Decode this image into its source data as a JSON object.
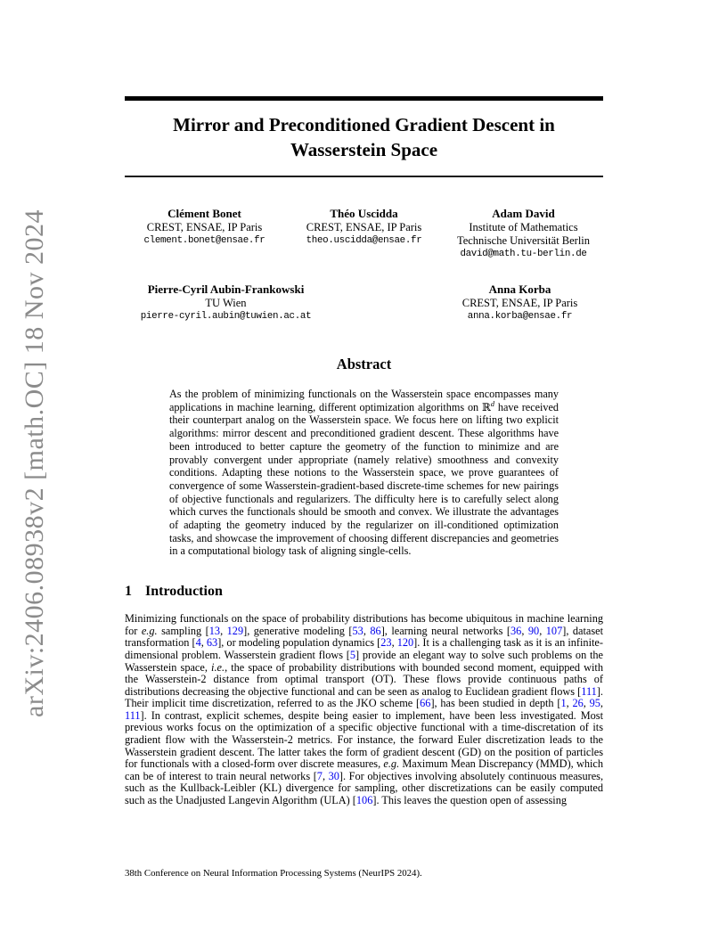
{
  "colors": {
    "link": "#0000EE",
    "watermark": "#8b8b8b"
  },
  "watermark": "arXiv:2406.08938v2  [math.OC]  18 Nov 2024",
  "title": "Mirror and Preconditioned Gradient Descent in Wasserstein Space",
  "authors": {
    "a1": {
      "name": "Clément Bonet",
      "affil1": "CREST, ENSAE, IP Paris",
      "email": "clement.bonet@ensae.fr"
    },
    "a2": {
      "name": "Théo Uscidda",
      "affil1": "CREST, ENSAE, IP Paris",
      "email": "theo.uscidda@ensae.fr"
    },
    "a3": {
      "name": "Adam David",
      "affil1": "Institute of Mathematics",
      "affil2": "Technische Universität Berlin",
      "email": "david@math.tu-berlin.de"
    },
    "a4": {
      "name": "Pierre-Cyril Aubin-Frankowski",
      "affil1": "TU Wien",
      "email": "pierre-cyril.aubin@tuwien.ac.at"
    },
    "a5": {
      "name": "Anna Korba",
      "affil1": "CREST, ENSAE, IP Paris",
      "email": "anna.korba@ensae.fr"
    }
  },
  "abstract": {
    "heading": "Abstract",
    "segments": [
      {
        "t": "As the problem of minimizing functionals on the Wasserstein space encompasses many applications in machine learning, different optimization algorithms on "
      },
      {
        "m": "ℝ"
      },
      {
        "sup": "d"
      },
      {
        "t": " have received their counterpart analog on the Wasserstein space. We focus here on lifting two explicit algorithms: mirror descent and preconditioned gradient descent. These algorithms have been introduced to better capture the geometry of the function to minimize and are provably convergent under appropriate (namely relative) smoothness and convexity conditions. Adapting these notions to the Wasserstein space, we prove guarantees of convergence of some Wasserstein-gradient-based discrete-time schemes for new pairings of objective functionals and regularizers. The difficulty here is to carefully select along which curves the functionals should be smooth and convex. We illustrate the advantages of adapting the geometry induced by the regularizer on ill-conditioned optimization tasks, and showcase the improvement of choosing different discrepancies and geometries in a computational biology task of aligning single-cells."
      }
    ]
  },
  "section1": {
    "number": "1",
    "title": "Introduction"
  },
  "intro": {
    "segments": [
      {
        "t": "Minimizing functionals on the space of probability distributions has become ubiquitous in machine learning for "
      },
      {
        "i": "e.g."
      },
      {
        "t": " sampling ["
      },
      {
        "c": "13"
      },
      {
        "t": ", "
      },
      {
        "c": "129"
      },
      {
        "t": "], generative modeling ["
      },
      {
        "c": "53"
      },
      {
        "t": ", "
      },
      {
        "c": "86"
      },
      {
        "t": "], learning neural networks ["
      },
      {
        "c": "36"
      },
      {
        "t": ", "
      },
      {
        "c": "90"
      },
      {
        "t": ", "
      },
      {
        "c": "107"
      },
      {
        "t": "], dataset transformation ["
      },
      {
        "c": "4"
      },
      {
        "t": ", "
      },
      {
        "c": "63"
      },
      {
        "t": "], or modeling population dynamics ["
      },
      {
        "c": "23"
      },
      {
        "t": ", "
      },
      {
        "c": "120"
      },
      {
        "t": "]. It is a challenging task as it is an infinite-dimensional problem. Wasserstein gradient flows ["
      },
      {
        "c": "5"
      },
      {
        "t": "] provide an elegant way to solve such problems on the Wasserstein space, "
      },
      {
        "i": "i.e."
      },
      {
        "t": ", the space of probability distributions with bounded second moment, equipped with the Wasserstein-2 distance from optimal transport (OT). These flows provide continuous paths of distributions decreasing the objective functional and can be seen as analog to Euclidean gradient flows ["
      },
      {
        "c": "111"
      },
      {
        "t": "]. Their implicit time discretization, referred to as the JKO scheme ["
      },
      {
        "c": "66"
      },
      {
        "t": "], has been studied in depth ["
      },
      {
        "c": "1"
      },
      {
        "t": ", "
      },
      {
        "c": "26"
      },
      {
        "t": ", "
      },
      {
        "c": "95"
      },
      {
        "t": ", "
      },
      {
        "c": "111"
      },
      {
        "t": "]. In contrast, explicit schemes, despite being easier to implement, have been less investigated. Most previous works focus on the optimization of a specific objective functional with a time-discretation of its gradient flow with the Wasserstein-2 metrics. For instance, the forward Euler discretization leads to the Wasserstein gradient descent. The latter takes the form of gradient descent (GD) on the position of particles for functionals with a closed-form over discrete measures, "
      },
      {
        "i": "e.g."
      },
      {
        "t": " Maximum Mean Discrepancy (MMD), which can be of interest to train neural networks ["
      },
      {
        "c": "7"
      },
      {
        "t": ", "
      },
      {
        "c": "30"
      },
      {
        "t": "]. For objectives involving absolutely continuous measures, such as the Kullback-Leibler (KL) divergence for sampling, other discretizations can be easily computed such as the Unadjusted Langevin Algorithm (ULA) ["
      },
      {
        "c": "106"
      },
      {
        "t": "]. This leaves the question open of assessing"
      }
    ]
  },
  "footer": "38th Conference on Neural Information Processing Systems (NeurIPS 2024)."
}
